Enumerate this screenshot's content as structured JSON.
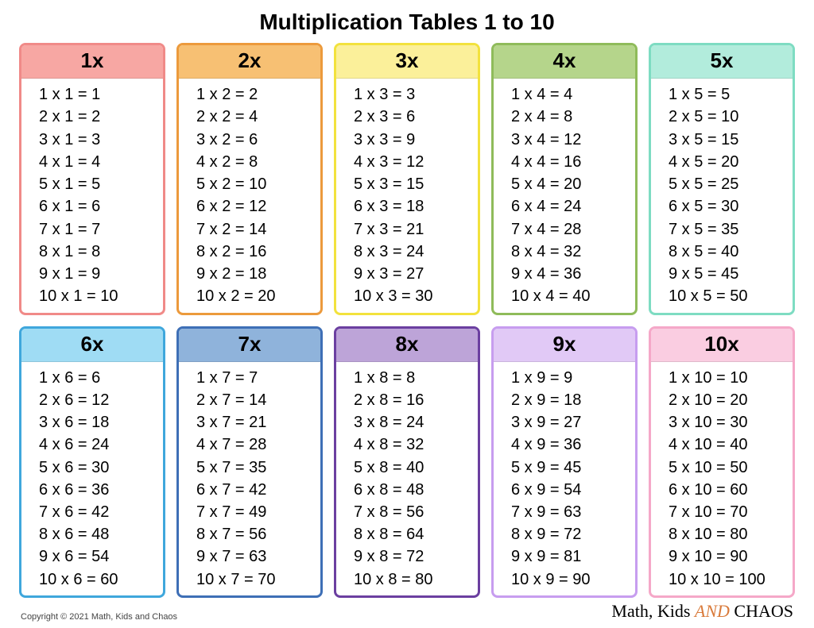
{
  "title": "Multiplication Tables 1 to 10",
  "background_color": "#ffffff",
  "title_fontsize": 28,
  "header_fontsize": 26,
  "row_fontsize": 20,
  "layout": {
    "columns": 5,
    "rows": 2,
    "card_border_width": 3,
    "card_border_radius": 8
  },
  "tables": [
    {
      "label": "1x",
      "border_color": "#f08a88",
      "header_color": "#f7a7a3",
      "rows": [
        "1 x 1 = 1",
        "2 x 1 = 2",
        "3 x 1 = 3",
        "4 x 1 = 4",
        "5 x 1 = 5",
        "6 x 1 = 6",
        "7 x 1 = 7",
        "8 x 1 = 8",
        "9 x 1 = 9",
        "10 x 1 = 10"
      ]
    },
    {
      "label": "2x",
      "border_color": "#ec9a3c",
      "header_color": "#f7c073",
      "rows": [
        "1 x 2 = 2",
        "2 x 2 = 4",
        "3 x 2 = 6",
        "4 x 2 = 8",
        "5 x 2 = 10",
        "6 x 2 = 12",
        "7 x 2 = 14",
        "8 x 2 = 16",
        "9 x 2 = 18",
        "10 x 2 = 20"
      ]
    },
    {
      "label": "3x",
      "border_color": "#f2e23d",
      "header_color": "#fbf09a",
      "rows": [
        "1 x 3 = 3",
        "2 x 3 = 6",
        "3 x 3 = 9",
        "4 x 3 = 12",
        "5 x 3 = 15",
        "6 x 3 = 18",
        "7 x 3 = 21",
        "8 x 3 = 24",
        "9 x 3 = 27",
        "10 x 3 = 30"
      ]
    },
    {
      "label": "4x",
      "border_color": "#8fbb5a",
      "header_color": "#b5d58b",
      "rows": [
        "1 x 4 = 4",
        "2 x 4 = 8",
        "3 x 4 = 12",
        "4 x 4 = 16",
        "5 x 4 = 20",
        "6 x 4 = 24",
        "7 x 4 = 28",
        "8 x 4 = 32",
        "9 x 4 = 36",
        "10 x 4 = 40"
      ]
    },
    {
      "label": "5x",
      "border_color": "#7edcc2",
      "header_color": "#b2ecdc",
      "rows": [
        "1 x 5 = 5",
        "2 x 5 = 10",
        "3 x 5 = 15",
        "4 x 5 = 20",
        "5 x 5 = 25",
        "6 x 5 = 30",
        "7 x 5 = 35",
        "8 x 5 = 40",
        "9 x 5 = 45",
        "10 x 5 = 50"
      ]
    },
    {
      "label": "6x",
      "border_color": "#3fa7dc",
      "header_color": "#9fdcf4",
      "rows": [
        "1 x 6 = 6",
        "2 x 6 = 12",
        "3 x 6 = 18",
        "4 x 6 = 24",
        "5 x 6 = 30",
        "6 x 6 = 36",
        "7 x 6 = 42",
        "8 x 6 = 48",
        "9 x 6 = 54",
        "10 x 6 = 60"
      ]
    },
    {
      "label": "7x",
      "border_color": "#3e6fb6",
      "header_color": "#8fb3db",
      "rows": [
        "1 x 7 = 7",
        "2 x 7 = 14",
        "3 x 7 = 21",
        "4 x 7 = 28",
        "5 x 7 = 35",
        "6 x 7 = 42",
        "7 x 7 = 49",
        "8 x 7 = 56",
        "9 x 7 = 63",
        "10 x 7 = 70"
      ]
    },
    {
      "label": "8x",
      "border_color": "#6b3fa0",
      "header_color": "#bda4d8",
      "rows": [
        "1 x 8 = 8",
        "2 x 8 = 16",
        "3 x 8 = 24",
        "4 x 8 = 32",
        "5 x 8 = 40",
        "6 x 8 = 48",
        "7 x 8 = 56",
        "8 x 8 = 64",
        "9 x 8 = 72",
        "10 x 8 = 80"
      ]
    },
    {
      "label": "9x",
      "border_color": "#c79def",
      "header_color": "#e1c9f6",
      "rows": [
        "1 x 9 = 9",
        "2 x 9 = 18",
        "3 x 9 = 27",
        "4 x 9 = 36",
        "5 x 9 = 45",
        "6 x 9 = 54",
        "7 x 9 = 63",
        "8 x 9 = 72",
        "9 x 9 = 81",
        "10 x 9 = 90"
      ]
    },
    {
      "label": "10x",
      "border_color": "#f5a8c8",
      "header_color": "#facde1",
      "rows": [
        "1 x 10 = 10",
        "2 x 10 = 20",
        "3 x 10 = 30",
        "4 x 10 = 40",
        "5 x 10 = 50",
        "6 x 10 = 60",
        "7 x 10 = 70",
        "8 x 10 = 80",
        "9 x 10 = 90",
        "10 x 10 = 100"
      ]
    }
  ],
  "footer": {
    "copyright": "Copyright © 2021 Math, Kids and Chaos",
    "brand_prefix": "Math, Kids ",
    "brand_accent": "AND",
    "brand_suffix": " CHAOS"
  }
}
